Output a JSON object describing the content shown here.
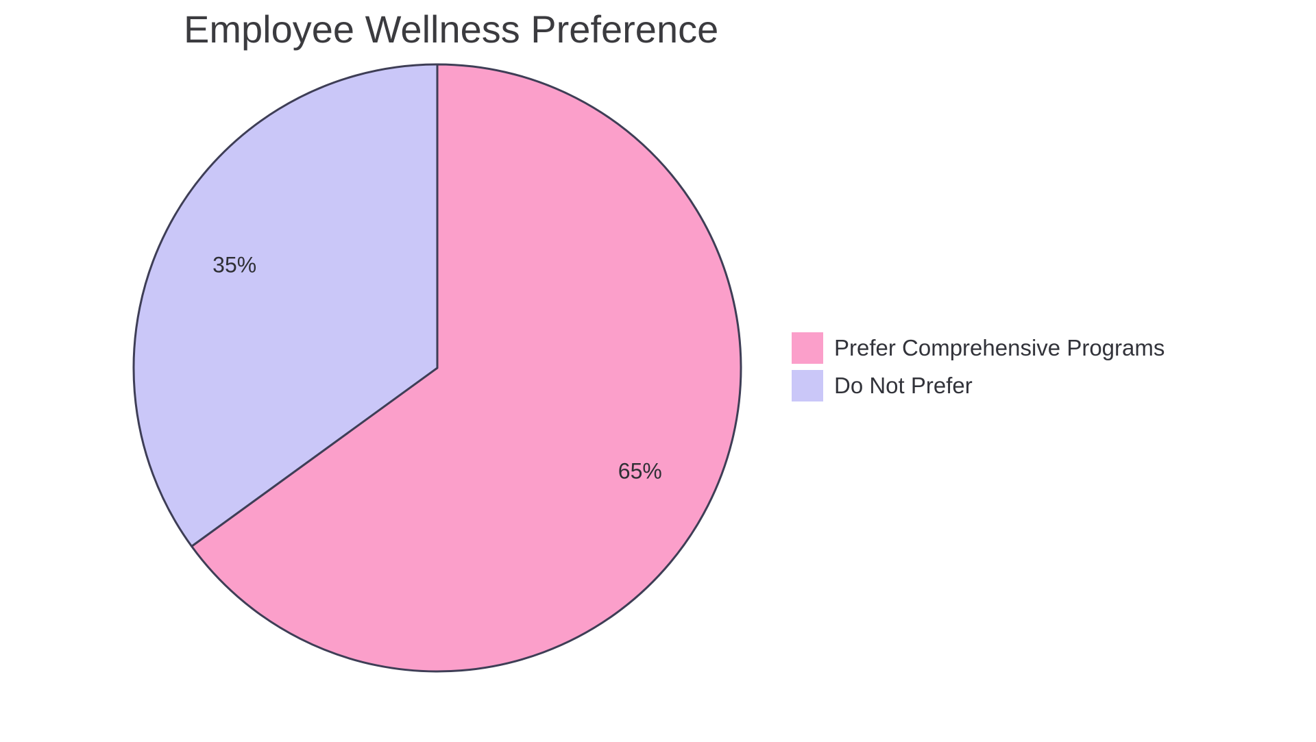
{
  "chart_data": {
    "type": "pie",
    "title": "Employee Wellness Preference",
    "slices": [
      {
        "label": "Prefer Comprehensive Programs",
        "value": 65,
        "pct_label": "65%",
        "color": "#FB9FCA"
      },
      {
        "label": "Do Not Prefer",
        "value": 35,
        "pct_label": "35%",
        "color": "#CAC7F8"
      }
    ],
    "start_angle_deg": 0,
    "direction": "clockwise",
    "legend_position": "right",
    "stroke_color": "#3E3E56",
    "stroke_width": 3,
    "label_text_color": "#2f3035",
    "background_color": "#ffffff"
  }
}
